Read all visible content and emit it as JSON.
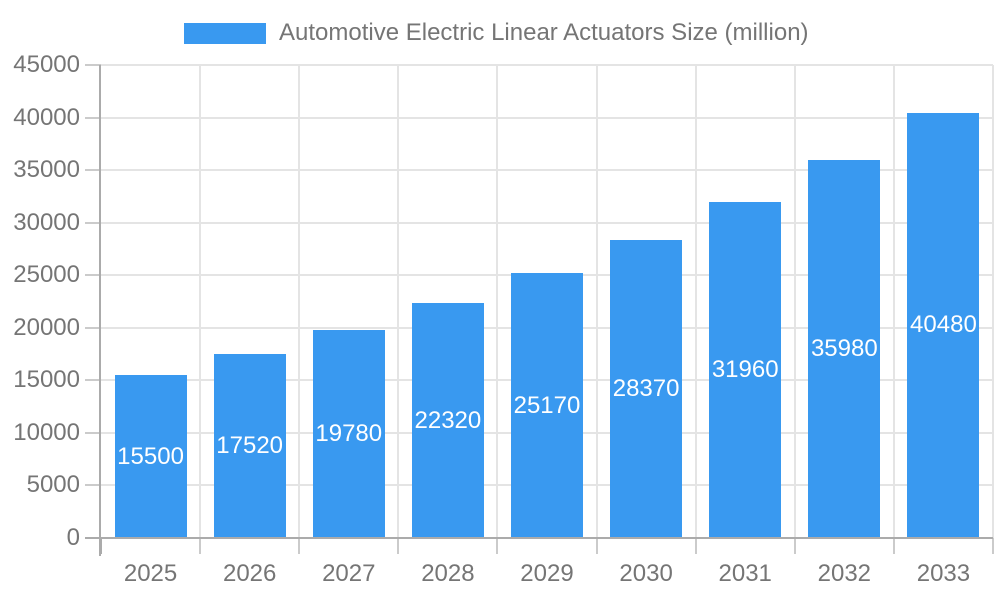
{
  "chart_data": {
    "type": "bar",
    "title": "Automotive Electric Linear Actuators Size (million)",
    "legend": [
      "Automotive Electric Linear Actuators Size (million)"
    ],
    "legend_position": "top",
    "categories": [
      "2025",
      "2026",
      "2027",
      "2028",
      "2029",
      "2030",
      "2031",
      "2032",
      "2033"
    ],
    "series": [
      {
        "name": "Automotive Electric Linear Actuators Size (million)",
        "values": [
          15500,
          17520,
          19780,
          22320,
          25170,
          28370,
          31960,
          35980,
          40480
        ]
      }
    ],
    "data_labels": [
      15500,
      17520,
      19780,
      22320,
      25170,
      28370,
      31960,
      35980,
      40480
    ],
    "data_label_position": "inside-center",
    "xlabel": "",
    "ylabel": "",
    "ylim": [
      0,
      45000
    ],
    "ytick_step": 5000,
    "yticks": [
      0,
      5000,
      10000,
      15000,
      20000,
      25000,
      30000,
      35000,
      40000,
      45000
    ],
    "grid": true,
    "colors": {
      "bar": "#3999F0",
      "bar_label_text": "#FFFFFF",
      "axis_text": "#757575",
      "grid_line": "#E4E4E4",
      "axis_line": "#ABABAB",
      "tick_mark": "#CBCBCB",
      "background": "#FFFFFF"
    }
  }
}
